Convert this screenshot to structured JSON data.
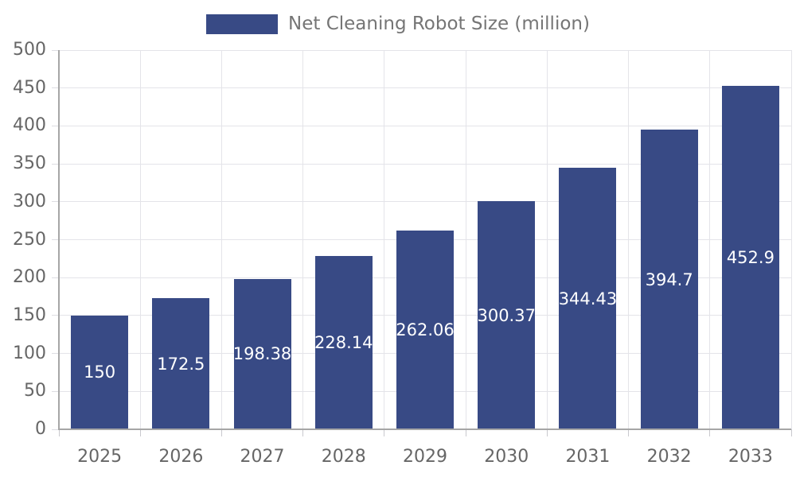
{
  "chart_data": {
    "type": "bar",
    "title": "Net Cleaning Robot Size (million)",
    "legend_entries": [
      "Net Cleaning Robot Size (million)"
    ],
    "legend_position": "top-center",
    "categories": [
      "2025",
      "2026",
      "2027",
      "2028",
      "2029",
      "2030",
      "2031",
      "2032",
      "2033"
    ],
    "values": [
      150,
      172.5,
      198.38,
      228.14,
      262.06,
      300.37,
      344.43,
      394.7,
      452.9
    ],
    "value_labels": [
      "150",
      "172.5",
      "198.38",
      "228.14",
      "262.06",
      "300.37",
      "344.43",
      "394.7",
      "452.9"
    ],
    "xlabel": "",
    "ylabel": "",
    "ylim": [
      0,
      500
    ],
    "ytick_step": 50,
    "ytick_labels": [
      "0",
      "50",
      "100",
      "150",
      "200",
      "250",
      "300",
      "350",
      "400",
      "450",
      "500"
    ],
    "grid": true,
    "colors": {
      "bar": "#384a85",
      "grid_line": "#e4e4e9",
      "axis_line": "#a6a6a6",
      "tick_label": "#666666",
      "legend_text": "#757575",
      "value_label": "#ffffff"
    }
  }
}
